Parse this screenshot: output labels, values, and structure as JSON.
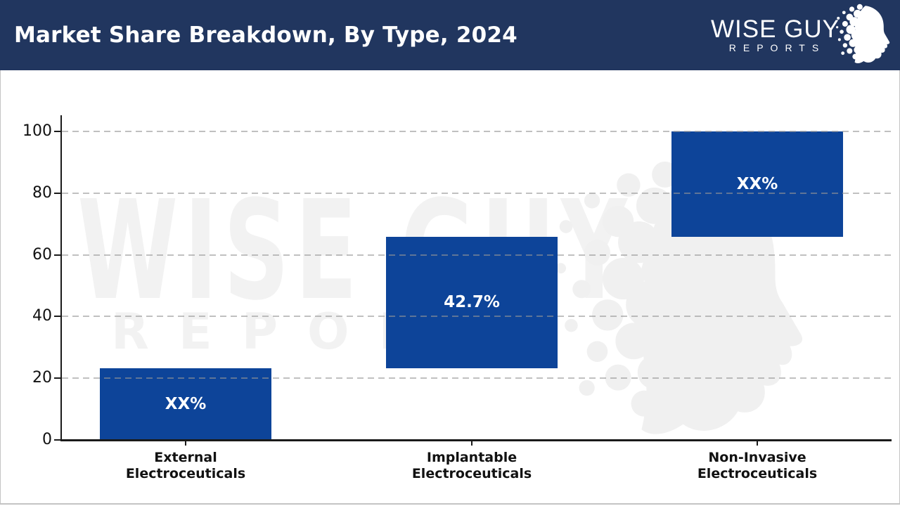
{
  "header": {
    "title": "Market Share Breakdown, By Type, 2024",
    "logo": {
      "line1": "WISE GUY",
      "line2": "REPORTS"
    }
  },
  "watermark": {
    "line1": "WISE GUY",
    "line2": "REPORTS"
  },
  "chart_data": {
    "type": "bar",
    "subtype": "floating-segment-waterfall",
    "title": "Market Share Breakdown, By Type, 2024",
    "categories": [
      "External\nElectroceuticals",
      "Implantable\nElectroceuticals",
      "Non-Invasive\nElectroceuticals"
    ],
    "series": [
      {
        "name": "External Electroceuticals",
        "start": 0,
        "end": 23.2,
        "label": "XX%"
      },
      {
        "name": "Implantable Electroceuticals",
        "start": 23.2,
        "end": 65.9,
        "label": "42.7%"
      },
      {
        "name": "Non-Invasive Electroceuticals",
        "start": 65.9,
        "end": 100,
        "label": "XX%"
      }
    ],
    "ylim": [
      0,
      100
    ],
    "yticks": [
      0,
      20,
      40,
      60,
      80,
      100
    ],
    "xlabel": "",
    "ylabel": "",
    "grid": "horizontal-dashed",
    "legend": "none",
    "colors": {
      "bar": "#0d4499",
      "bar_label": "#ffffff",
      "axis": "#1a1a1a",
      "grid": "#c9c9c9",
      "header_bg": "#21365f",
      "watermark": "#f2f2f2"
    }
  }
}
